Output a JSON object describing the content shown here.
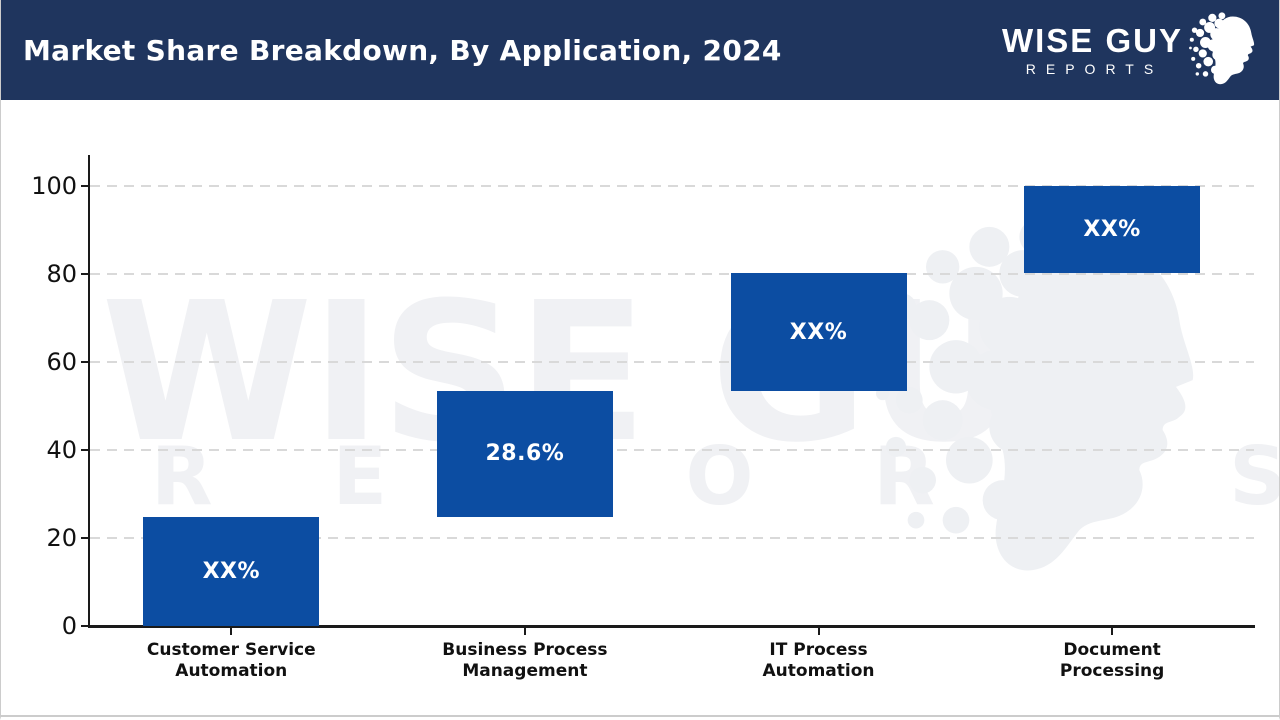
{
  "header": {
    "title": "Market Share Breakdown, By Application, 2024",
    "logo": {
      "wordmark": "WISE GUY",
      "subtext": "REPORTS",
      "head_icon": "dotted-head-profile"
    }
  },
  "watermark": {
    "line1": "WISE GUY",
    "line2": "R E P O R T S",
    "head_icon": "dotted-head-profile"
  },
  "colors": {
    "header_bg": "#1f355e",
    "page_bg": "#ffffff",
    "bar": "#0c4da2",
    "bar_label": "#ffffff",
    "grid": "#d9d9d9",
    "axis": "#1a1a1a",
    "text": "#111111",
    "watermark": "#f0f1f4",
    "page_border": "#cccccc"
  },
  "chart_data": {
    "type": "bar",
    "subtype": "waterfall",
    "title": "Market Share Breakdown, By Application, 2024",
    "categories": [
      "Customer Service\nAutomation",
      "Business Process\nManagement",
      "IT Process\nAutomation",
      "Document\nProcessing"
    ],
    "series": [
      {
        "name": "Market share (%)",
        "segments": [
          {
            "category": "Customer Service Automation",
            "start": 0,
            "end": 24.8,
            "label": "XX%"
          },
          {
            "category": "Business Process Management",
            "start": 24.8,
            "end": 53.4,
            "label": "28.6%"
          },
          {
            "category": "IT Process Automation",
            "start": 53.4,
            "end": 80.2,
            "label": "XX%"
          },
          {
            "category": "Document Processing",
            "start": 80.2,
            "end": 100,
            "label": "XX%"
          }
        ]
      }
    ],
    "xlabel": "",
    "ylabel": "",
    "ylim": [
      0,
      100
    ],
    "yticks": [
      0,
      20,
      40,
      60,
      80,
      100
    ],
    "grid": true,
    "grid_style": "dashed",
    "legend": "none"
  }
}
